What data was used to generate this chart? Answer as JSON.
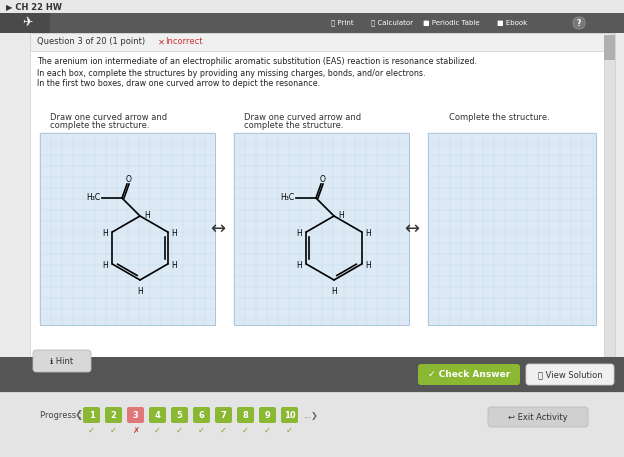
{
  "bg_color": "#ebebeb",
  "header_bg": "#f0f0f0",
  "header_text_color": "#333333",
  "header_text": "CH 22 HW",
  "toolbar_bg": "#595959",
  "question_label": "Question 3 of 20 (1 point)",
  "incorrect_label": "Incorrect",
  "question_text_line1": "The arenium ion intermediate of an electrophilic aromatic substitution (EAS) reaction is resonance stabilized.",
  "question_text_line2": "In each box, complete the structures by providing any missing charges, bonds, and/or electrons.",
  "question_text_line3": "In the first two boxes, draw one curved arrow to depict the resonance.",
  "box1_label": "Draw one curved arrow and\ncomplete the structure.",
  "box2_label": "Draw one curved arrow and\ncomplete the structure.",
  "box3_label": "Complete the structure.",
  "box_bg": "#ddeaf5",
  "box_border": "#a8c4d8",
  "grid_color": "#c0d8ea",
  "bottom_bar_bg": "#555555",
  "check_answer_bg": "#8ab832",
  "progress_green": "#8ab832",
  "progress_red": "#e07878",
  "progress_items": [
    "1",
    "2",
    "3",
    "4",
    "5",
    "6",
    "7",
    "8",
    "9",
    "10"
  ],
  "progress_status": [
    "check",
    "check",
    "x",
    "check",
    "check",
    "check",
    "check",
    "check",
    "check",
    "check"
  ],
  "arrow_symbol": "↔"
}
